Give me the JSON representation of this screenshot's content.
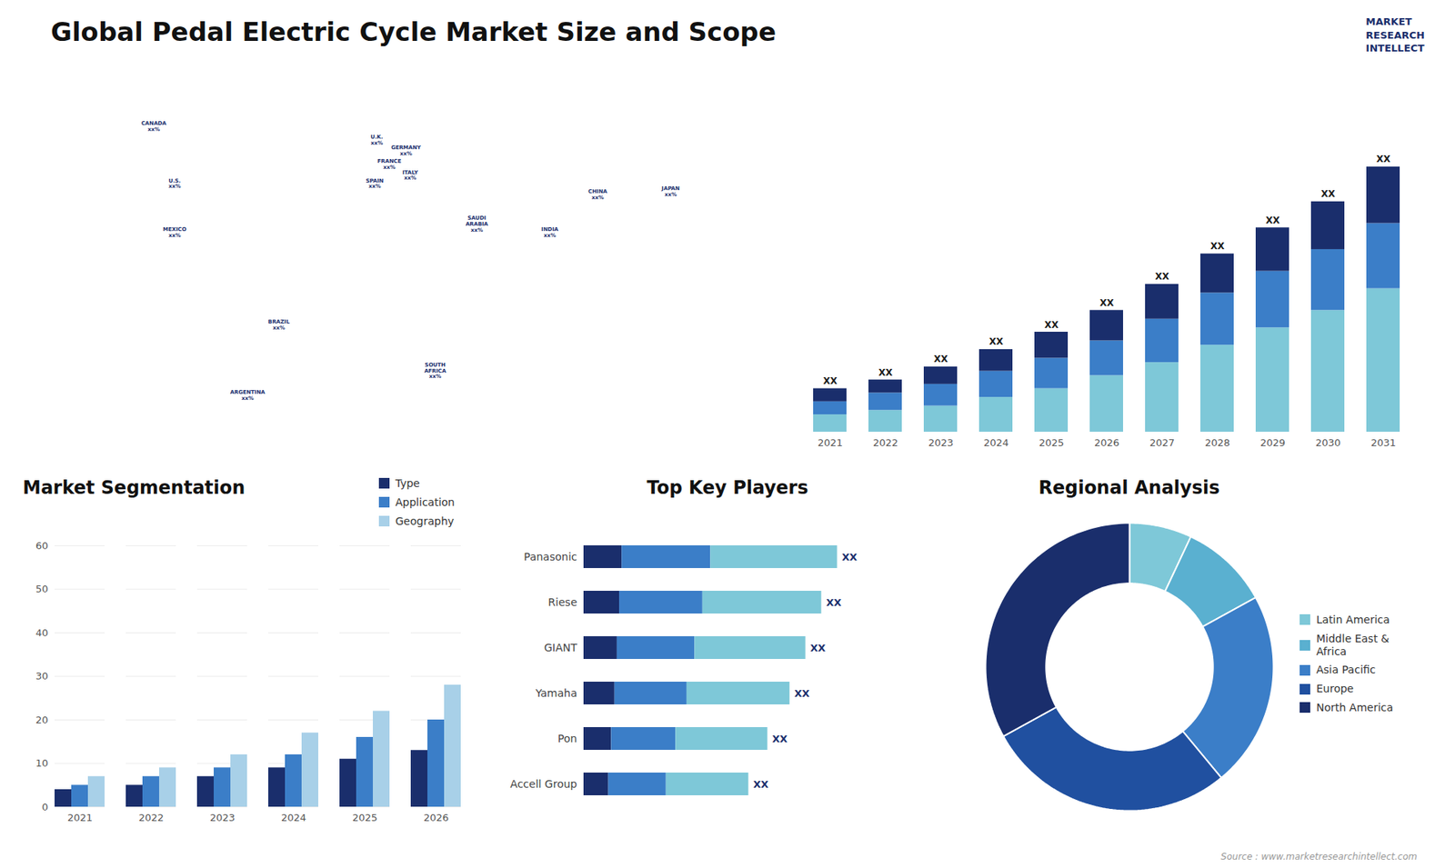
{
  "chart_data": [
    {
      "type": "bar",
      "title": "Global Pedal Electric Cycle Market Size and Scope",
      "stacked": true,
      "categories": [
        "2021",
        "2022",
        "2023",
        "2024",
        "2025",
        "2026",
        "2027",
        "2028",
        "2029",
        "2030",
        "2031"
      ],
      "series": [
        {
          "color": "#7ec8d8",
          "values": [
            4,
            5,
            6,
            8,
            10,
            13,
            16,
            20,
            24,
            28,
            33
          ]
        },
        {
          "color": "#3b7ec8",
          "values": [
            3,
            4,
            5,
            6,
            7,
            8,
            10,
            12,
            13,
            14,
            15
          ]
        },
        {
          "color": "#1a2e6c",
          "values": [
            3,
            3,
            4,
            5,
            6,
            7,
            8,
            9,
            10,
            11,
            13
          ]
        }
      ],
      "ylim": [
        0,
        69
      ],
      "tick_labels": "x",
      "grid": false,
      "annotations": [
        {
          "category": "2021",
          "text": "XX",
          "color": "#1a1a1a"
        },
        {
          "category": "2022",
          "text": "XX",
          "color": "#1a1a1a"
        },
        {
          "category": "2023",
          "text": "XX",
          "color": "#1a1a1a"
        },
        {
          "category": "2024",
          "text": "XX",
          "color": "#1a1a1a"
        },
        {
          "category": "2025",
          "text": "XX",
          "color": "#1a1a1a"
        },
        {
          "category": "2026",
          "text": "XX",
          "color": "#1a1a1a"
        },
        {
          "category": "2027",
          "text": "XX",
          "color": "#1a1a1a"
        },
        {
          "category": "2028",
          "text": "XX",
          "color": "#1a1a1a"
        },
        {
          "category": "2029",
          "text": "XX",
          "color": "#1a1a1a"
        },
        {
          "category": "2030",
          "text": "XX",
          "color": "#1a1a1a"
        },
        {
          "category": "2031",
          "text": "XX",
          "color": "#1a1a1a"
        },
        {
          "text": "MARKET\nRESEARCH\nINTELLECT",
          "color": "#1a2e6c"
        }
      ],
      "caption": "Source : www.marketresearchintellect.com"
    },
    {
      "type": "map",
      "xlim": [
        -180,
        180
      ],
      "ylim": [
        -60,
        85
      ],
      "tick_labels": false,
      "color": "#1a2e6c",
      "annotations": [
        {
          "text": "CANADA\nxx%",
          "x": -110,
          "y": 61
        },
        {
          "text": "U.S.\nxx%",
          "x": -100,
          "y": 40
        },
        {
          "text": "MEXICO\nxx%",
          "x": -100,
          "y": 22
        },
        {
          "text": "BRAZIL\nxx%",
          "x": -50,
          "y": -12
        },
        {
          "text": "ARGENTINA\nxx%",
          "x": -65,
          "y": -38
        },
        {
          "text": "U.K.\nxx%",
          "x": -3,
          "y": 56
        },
        {
          "text": "FRANCE\nxx%",
          "x": 3,
          "y": 47
        },
        {
          "text": "SPAIN\nxx%",
          "x": -4,
          "y": 40
        },
        {
          "text": "GERMANY\nxx%",
          "x": 11,
          "y": 52
        },
        {
          "text": "ITALY\nxx%",
          "x": 13,
          "y": 43
        },
        {
          "text": "SAUDI\nARABIA\nxx%",
          "x": 45,
          "y": 25
        },
        {
          "text": "SOUTH\nAFRICA\nxx%",
          "x": 25,
          "y": -29
        },
        {
          "text": "CHINA\nxx%",
          "x": 103,
          "y": 36
        },
        {
          "text": "INDIA\nxx%",
          "x": 80,
          "y": 22
        },
        {
          "text": "JAPAN\nxx%",
          "x": 138,
          "y": 37
        }
      ]
    },
    {
      "type": "bar",
      "title": "Market Segmentation",
      "categories": [
        "2021",
        "2022",
        "2023",
        "2024",
        "2025",
        "2026"
      ],
      "series": [
        {
          "name": "Type",
          "color": "#1a2e6c",
          "values": [
            4,
            5,
            7,
            9,
            11,
            13
          ]
        },
        {
          "name": "Application",
          "color": "#3b7ec8",
          "values": [
            5,
            7,
            9,
            12,
            16,
            20
          ]
        },
        {
          "name": "Geography",
          "color": "#a8d0e8",
          "values": [
            7,
            9,
            12,
            17,
            22,
            28
          ]
        }
      ],
      "ylim": [
        0,
        60
      ],
      "yticks": [
        0,
        10,
        20,
        30,
        40,
        50,
        60
      ],
      "grid": true,
      "legend": "upper right"
    },
    {
      "type": "bar",
      "title": "Top Key Players",
      "orientation": "horizontal",
      "stacked": true,
      "categories": [
        "Panasonic",
        "Riese",
        "GIANT",
        "Yamaha",
        "Pon",
        "Accell Group"
      ],
      "series": [
        {
          "color": "#1a2e6c",
          "values": [
            1.2,
            1.125,
            1.05,
            0.975,
            0.87,
            0.78
          ]
        },
        {
          "color": "#3b7ec8",
          "values": [
            2.8,
            2.625,
            2.45,
            2.275,
            2.03,
            1.82
          ]
        },
        {
          "color": "#7ec8d8",
          "values": [
            4.0,
            3.75,
            3.5,
            3.25,
            2.9,
            2.6
          ]
        }
      ],
      "xlim": [
        0,
        11
      ],
      "tick_labels": "y",
      "grid": false,
      "annotations": [
        {
          "category": "Panasonic",
          "text": "XX",
          "color": "#1a2e6c"
        },
        {
          "category": "Riese",
          "text": "XX",
          "color": "#1a2e6c"
        },
        {
          "category": "GIANT",
          "text": "XX",
          "color": "#1a2e6c"
        },
        {
          "category": "Yamaha",
          "text": "XX",
          "color": "#1a2e6c"
        },
        {
          "category": "Pon",
          "text": "XX",
          "color": "#1a2e6c"
        },
        {
          "category": "Accell Group",
          "text": "XX",
          "color": "#1a2e6c"
        }
      ]
    },
    {
      "type": "pie",
      "title": "Regional Analysis",
      "categories": [
        "Latin America",
        "Middle East &\nAfrica",
        "Asia Pacific",
        "Europe",
        "North America"
      ],
      "values": [
        7,
        10,
        22,
        28,
        33
      ],
      "colors": [
        "#7ec8d8",
        "#5ab0d0",
        "#3b7ec8",
        "#2050a0",
        "#1a2e6c"
      ],
      "legend": "right"
    }
  ]
}
